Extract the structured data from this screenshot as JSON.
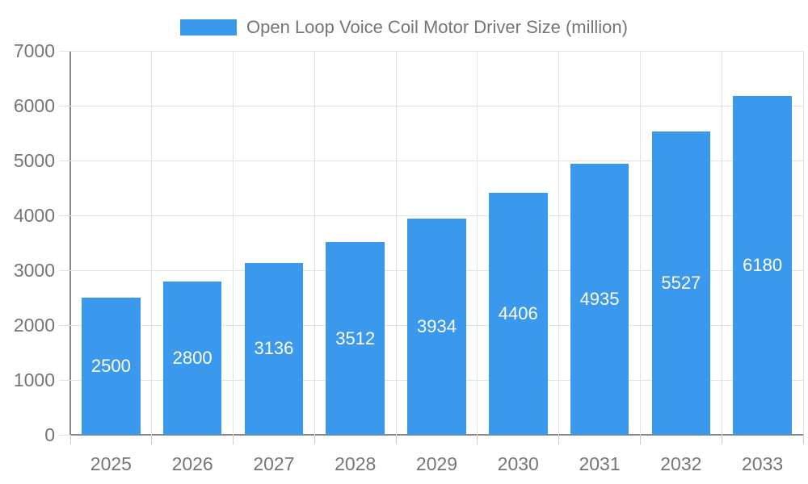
{
  "legend": {
    "swatch_color": "#3B99ED",
    "label": "Open Loop Voice Coil Motor Driver Size (million)"
  },
  "chart_data": {
    "type": "bar",
    "title": "Open Loop Voice Coil Motor Driver Size (million)",
    "categories": [
      "2025",
      "2026",
      "2027",
      "2028",
      "2029",
      "2030",
      "2031",
      "2032",
      "2033"
    ],
    "values": [
      2500,
      2800,
      3136,
      3512,
      3934,
      4406,
      4935,
      5527,
      6180
    ],
    "xlabel": "",
    "ylabel": "",
    "ylim": [
      0,
      7000
    ],
    "yticks": [
      0,
      1000,
      2000,
      3000,
      4000,
      5000,
      6000,
      7000
    ],
    "grid": true,
    "legend_position": "top",
    "value_labels": "inside-center-white",
    "bar_width_fraction": 0.72,
    "colors": {
      "bar": "#3B99ED",
      "axis_label": "#757575",
      "gridline": "#E2E2E2",
      "axis_line": "#888888",
      "tick": "#CCCCCC",
      "value_label": "#FFFFFF",
      "background": "#FFFFFF"
    }
  }
}
